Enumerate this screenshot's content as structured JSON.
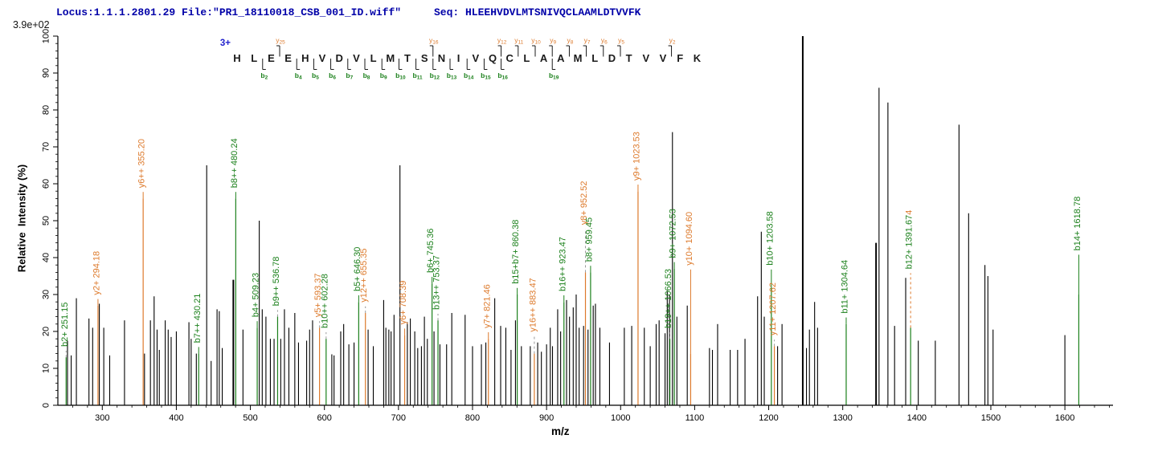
{
  "header": {
    "locus_file": "Locus:1.1.1.2801.29 File:\"PR1_18110018_CSB_001_ID.wiff\"",
    "seq": "Seq: HLEEHVDVLMTSNIVQCLAAMLDTVVFK"
  },
  "axes": {
    "max_intensity": "3.9e+02",
    "y_title": "Relative  Intensity (%)",
    "x_title": "m/z"
  },
  "colors": {
    "b_ion": "#1B801B",
    "y_ion": "#DD7A2C",
    "peak_black": "#000000",
    "header_blue": "#0000A8",
    "charge_blue": "#2222CC",
    "dash_gray": "#9B9B9B"
  },
  "peptide": {
    "charge_label": "3+",
    "sequence": "HLEEHVDVLMTSNIVQCLAAMLDTVVFK",
    "b_ions": [
      2,
      4,
      5,
      6,
      7,
      8,
      9,
      10,
      11,
      12,
      13,
      14,
      15,
      16,
      19
    ],
    "y_ions": [
      25,
      16,
      12,
      11,
      10,
      9,
      8,
      7,
      6,
      5,
      2
    ]
  },
  "chart_data": {
    "type": "bar",
    "variant": "ms2-peptide-fragmentation-spectrum",
    "title": "",
    "xlabel": "m/z",
    "ylabel": "Relative Intensity (%)",
    "xlim": [
      240,
      1665
    ],
    "ylim": [
      0,
      100
    ],
    "x_ticks": [
      300,
      400,
      500,
      600,
      700,
      800,
      900,
      1000,
      1100,
      1200,
      1300,
      1400,
      1500,
      1600
    ],
    "y_ticks": [
      0,
      10,
      20,
      30,
      40,
      50,
      60,
      70,
      80,
      90,
      100
    ],
    "annotated_peaks": [
      {
        "text": "b2+ 251.15",
        "ion": "b2+",
        "mz": 251.15,
        "intensity": 13,
        "series": "b",
        "dashed_leader": true
      },
      {
        "text": "y2+ 294.18",
        "ion": "y2+",
        "mz": 294.18,
        "intensity": 27,
        "series": "y"
      },
      {
        "text": "y6++ 355.20",
        "ion": "y6++",
        "mz": 355.2,
        "intensity": 56,
        "series": "y"
      },
      {
        "text": "b7++ 430.21",
        "ion": "b7++",
        "mz": 430.21,
        "intensity": 14,
        "series": "b"
      },
      {
        "text": "b8++ 480.24",
        "ion": "b8++",
        "mz": 480.24,
        "intensity": 56,
        "series": "b"
      },
      {
        "text": "b4+ 509.23",
        "ion": "b4+",
        "mz": 509.23,
        "intensity": 21,
        "series": "b"
      },
      {
        "text": "b9++ 536.78",
        "ion": "b9++",
        "mz": 536.78,
        "intensity": 24,
        "series": "b",
        "dashed_leader": true
      },
      {
        "text": "y5+ 593.37",
        "ion": "y5+",
        "mz": 593.37,
        "intensity": 21,
        "series": "y",
        "dashed_leader": true
      },
      {
        "text": "b10++ 602.28",
        "ion": "b10++",
        "mz": 602.28,
        "intensity": 18,
        "series": "b",
        "dashed_leader": true
      },
      {
        "text": "b5+ 646.30",
        "ion": "b5+",
        "mz": 646.3,
        "intensity": 28,
        "series": "b"
      },
      {
        "text": "y12++ 655.35",
        "ion": "y12++",
        "mz": 655.35,
        "intensity": 25,
        "series": "y",
        "dashed_leader": true
      },
      {
        "text": "y6+ 708.39",
        "ion": "y6+",
        "mz": 708.39,
        "intensity": 19,
        "series": "y"
      },
      {
        "text": "b6+ 745.36",
        "ion": "b6+",
        "mz": 745.36,
        "intensity": 33,
        "series": "b"
      },
      {
        "text": "b13++ 753.37",
        "ion": "b13++",
        "mz": 753.37,
        "intensity": 23,
        "series": "b",
        "dashed_leader": true
      },
      {
        "text": "y7+ 821.46",
        "ion": "y7+",
        "mz": 821.46,
        "intensity": 18,
        "series": "y"
      },
      {
        "text": "b15+b7+ 860.38",
        "ion": "b15+b7+",
        "mz": 860.38,
        "intensity": 30,
        "series": "b"
      },
      {
        "text": "y16++ 883.47",
        "ion": "y16++",
        "mz": 883.47,
        "intensity": 14,
        "series": "y",
        "dashed_leader": true,
        "label_y": 19
      },
      {
        "text": "b16++ 923.47",
        "ion": "b16++",
        "mz": 923.47,
        "intensity": 28,
        "series": "b"
      },
      {
        "text": "y8+ 952.52",
        "ion": "y8+",
        "mz": 952.52,
        "intensity": 36,
        "series": "y",
        "dashed_leader": true,
        "label_y": 48
      },
      {
        "text": "b8+ 959.45",
        "ion": "b8+",
        "mz": 959.45,
        "intensity": 36,
        "series": "b"
      },
      {
        "text": "y9+ 1023.53",
        "ion": "y9+",
        "mz": 1023.53,
        "intensity": 58,
        "series": "y"
      },
      {
        "text": "b19++ 1066.53",
        "ion": "b19++",
        "mz": 1066.53,
        "intensity": 18,
        "series": "b",
        "dashed_leader": true
      },
      {
        "text": "b9+ 1072.53",
        "ion": "b9+",
        "mz": 1072.53,
        "intensity": 37,
        "series": "b"
      },
      {
        "text": "y10+ 1094.60",
        "ion": "y10+",
        "mz": 1094.6,
        "intensity": 14,
        "series": "y",
        "label_y": 37
      },
      {
        "text": "b10+ 1203.58",
        "ion": "b10+",
        "mz": 1203.58,
        "intensity": 32,
        "series": "b",
        "label_y": 37
      },
      {
        "text": "y11+ 1207.62",
        "ion": "y11+",
        "mz": 1207.62,
        "intensity": 16,
        "series": "y",
        "dashed_leader": true
      },
      {
        "text": "b11+ 1304.64",
        "ion": "b11+",
        "mz": 1304.64,
        "intensity": 22,
        "series": "b"
      },
      {
        "text": "b12+ 1391.67",
        "ion": "b12+",
        "mz": 1391.67,
        "intensity": 21,
        "series": "b",
        "dashed_leader": true,
        "leader_color": "y",
        "label_y": 36,
        "suffix": "4"
      },
      {
        "text": "b14+ 1618.78",
        "ion": "b14+",
        "mz": 1618.78,
        "intensity": 30,
        "series": "b",
        "label_y": 41
      }
    ],
    "background_peaks": [
      [
        253,
        17.5
      ],
      [
        258,
        13.5
      ],
      [
        265,
        29
      ],
      [
        282,
        23.5
      ],
      [
        287,
        21
      ],
      [
        296,
        27.5
      ],
      [
        302,
        21
      ],
      [
        310,
        13.5
      ],
      [
        330,
        23
      ],
      [
        357,
        14
      ],
      [
        365,
        23
      ],
      [
        370,
        29.5
      ],
      [
        374,
        20.5
      ],
      [
        377,
        15
      ],
      [
        385,
        23
      ],
      [
        389,
        20.5
      ],
      [
        393,
        18.5
      ],
      [
        400,
        20
      ],
      [
        417,
        22.5
      ],
      [
        420,
        18
      ],
      [
        427,
        14
      ],
      [
        441,
        65
      ],
      [
        447,
        12
      ],
      [
        455,
        26
      ],
      [
        458,
        25.5
      ],
      [
        462,
        15.5
      ],
      [
        477,
        34,
        2
      ],
      [
        490,
        20.5
      ],
      [
        512,
        50
      ],
      [
        516,
        26
      ],
      [
        521,
        24
      ],
      [
        527,
        18
      ],
      [
        532,
        18
      ],
      [
        541,
        18
      ],
      [
        546,
        26
      ],
      [
        552,
        21
      ],
      [
        560,
        25
      ],
      [
        565,
        17
      ],
      [
        576,
        17.5
      ],
      [
        580,
        20.5
      ],
      [
        584,
        23
      ],
      [
        610,
        13.8
      ],
      [
        613,
        13.5
      ],
      [
        622,
        20
      ],
      [
        626,
        22
      ],
      [
        633,
        16.5
      ],
      [
        640,
        17
      ],
      [
        659,
        20.5
      ],
      [
        666,
        16
      ],
      [
        680,
        28.5
      ],
      [
        683,
        21
      ],
      [
        687,
        20.5
      ],
      [
        690,
        20
      ],
      [
        694,
        24.5
      ],
      [
        702,
        65
      ],
      [
        712,
        22.5
      ],
      [
        716,
        23.5
      ],
      [
        722,
        20
      ],
      [
        726,
        15.5
      ],
      [
        731,
        16
      ],
      [
        735,
        24
      ],
      [
        739,
        18
      ],
      [
        748,
        20
      ],
      [
        756,
        16.5
      ],
      [
        765,
        16.5
      ],
      [
        772,
        25
      ],
      [
        790,
        24.5
      ],
      [
        800,
        16
      ],
      [
        812,
        16.5
      ],
      [
        818,
        17
      ],
      [
        830,
        29
      ],
      [
        838,
        21.5
      ],
      [
        845,
        21
      ],
      [
        852,
        15
      ],
      [
        858,
        23
      ],
      [
        866,
        16
      ],
      [
        878,
        16
      ],
      [
        888,
        17
      ],
      [
        893,
        14.5
      ],
      [
        900,
        16.5
      ],
      [
        905,
        21
      ],
      [
        908,
        16
      ],
      [
        915,
        26
      ],
      [
        919,
        20
      ],
      [
        927,
        28.5
      ],
      [
        931,
        24
      ],
      [
        936,
        26.5
      ],
      [
        940,
        30
      ],
      [
        944,
        21
      ],
      [
        950,
        21.5
      ],
      [
        956,
        20.5
      ],
      [
        963,
        27
      ],
      [
        966,
        27.5
      ],
      [
        972,
        21
      ],
      [
        985,
        17
      ],
      [
        1005,
        21
      ],
      [
        1015,
        21.5
      ],
      [
        1032,
        21
      ],
      [
        1040,
        16
      ],
      [
        1048,
        22
      ],
      [
        1052,
        23
      ],
      [
        1060,
        19.5
      ],
      [
        1063,
        31
      ],
      [
        1066,
        30
      ],
      [
        1070,
        74
      ],
      [
        1076,
        24
      ],
      [
        1090,
        27
      ],
      [
        1120,
        15.5
      ],
      [
        1124,
        15
      ],
      [
        1131,
        22
      ],
      [
        1148,
        15
      ],
      [
        1158,
        15
      ],
      [
        1168,
        18
      ],
      [
        1185,
        29.5
      ],
      [
        1190,
        47
      ],
      [
        1194,
        24
      ],
      [
        1212,
        16
      ],
      [
        1218,
        22
      ],
      [
        1246,
        100,
        2
      ],
      [
        1251,
        15.5
      ],
      [
        1255,
        20.5
      ],
      [
        1262,
        28
      ],
      [
        1266,
        21
      ],
      [
        1345,
        44,
        2
      ],
      [
        1349,
        86
      ],
      [
        1361,
        82
      ],
      [
        1370,
        21.5
      ],
      [
        1385,
        34.5
      ],
      [
        1402,
        17.5
      ],
      [
        1425,
        17.5
      ],
      [
        1457,
        76
      ],
      [
        1470,
        52
      ],
      [
        1492,
        38
      ],
      [
        1496,
        35
      ],
      [
        1503,
        20.5
      ],
      [
        1600,
        19
      ]
    ]
  }
}
